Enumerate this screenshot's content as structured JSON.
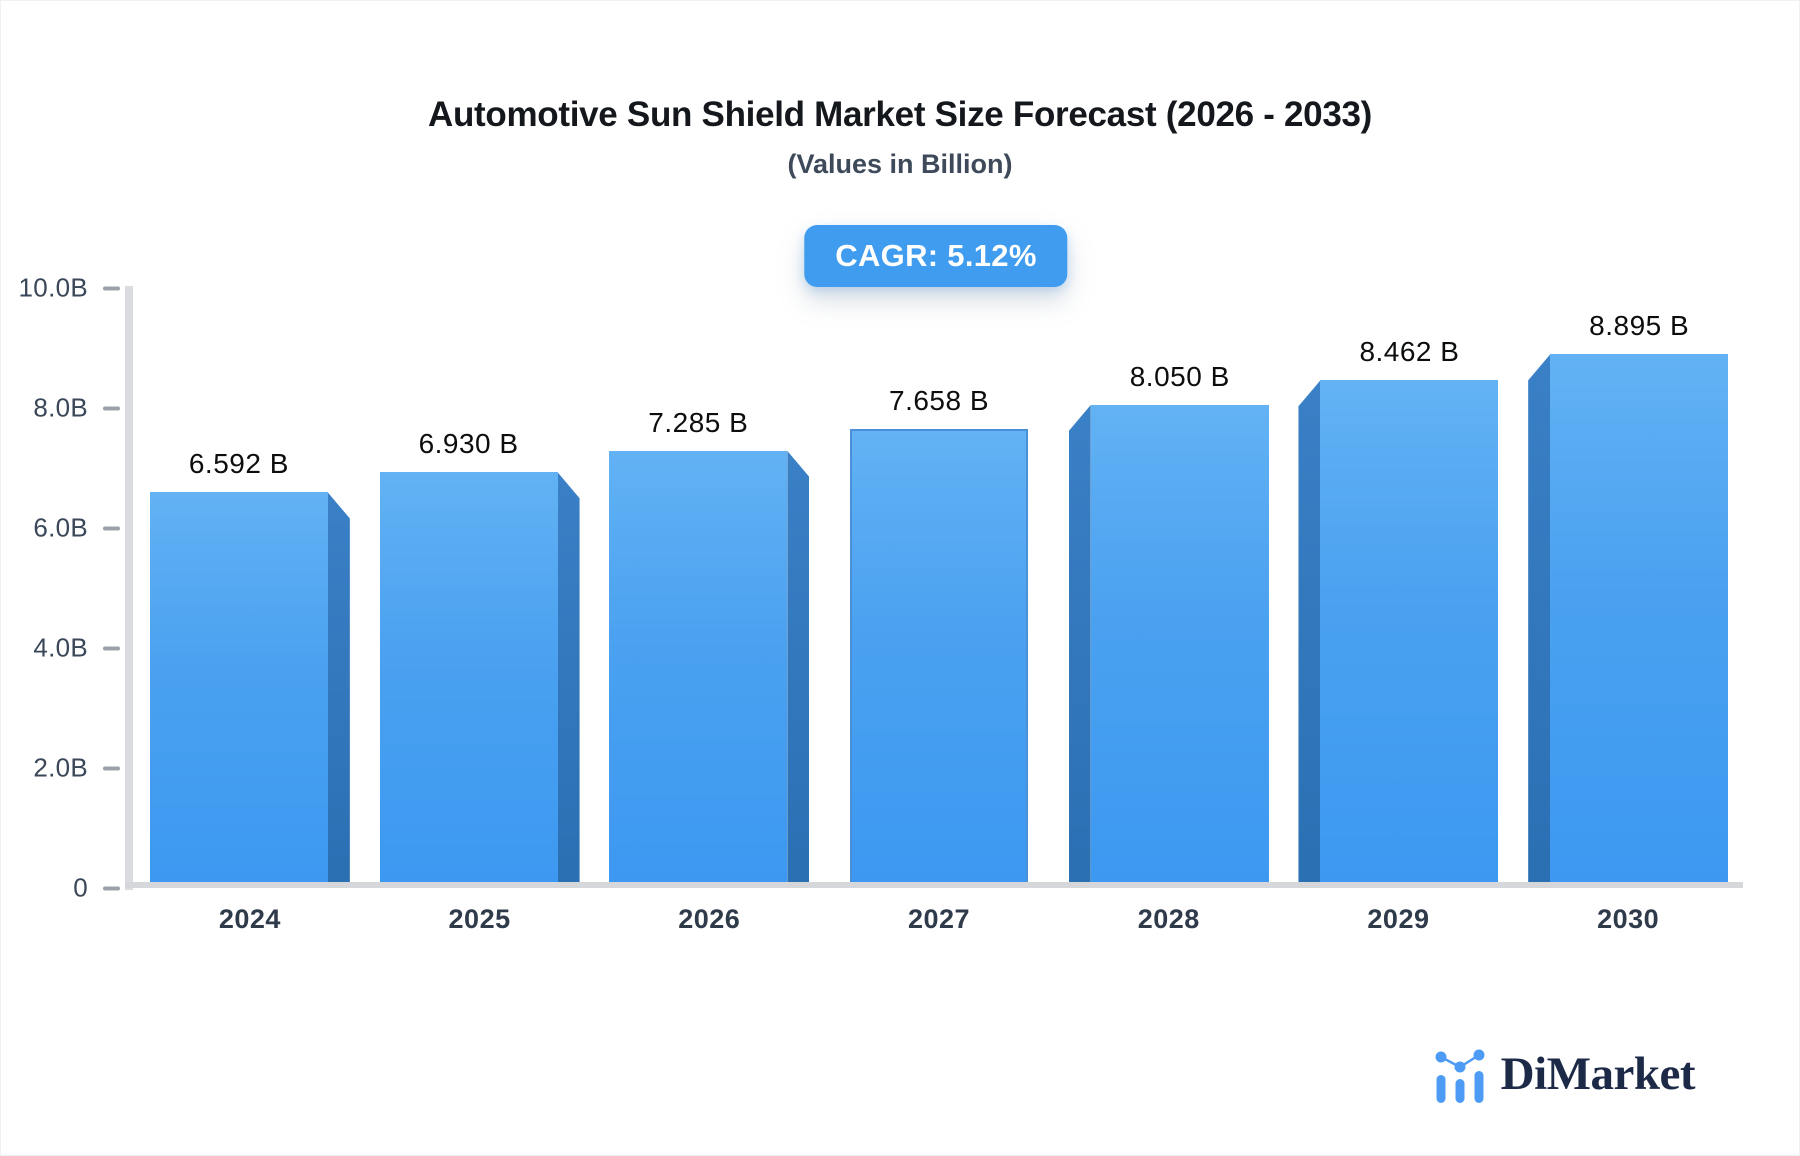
{
  "header": {
    "title": "Automotive Sun Shield Market Size Forecast (2026 - 2033)",
    "subtitle": "(Values in Billion)"
  },
  "badge": {
    "label": "CAGR: 5.12%"
  },
  "chart_data": {
    "type": "bar",
    "title": "Automotive Sun Shield Market Size Forecast (2026 - 2033)",
    "subtitle": "(Values in Billion)",
    "cagr": "5.12%",
    "categories": [
      "2024",
      "2025",
      "2026",
      "2027",
      "2028",
      "2029",
      "2030"
    ],
    "values": [
      6.592,
      6.93,
      7.285,
      7.658,
      8.05,
      8.462,
      8.895
    ],
    "value_labels": [
      "6.592 B",
      "6.930 B",
      "7.285 B",
      "7.658 B",
      "8.050 B",
      "8.462 B",
      "8.895 B"
    ],
    "xlabel": "",
    "ylabel": "",
    "ylim": [
      0,
      10
    ],
    "ytick_labels_top_to_bottom": [
      "10.0B",
      "8.0B",
      "6.0B",
      "4.0B",
      "2.0B",
      "0"
    ],
    "grid": false,
    "legend": false,
    "bar_style": "3d-extruded, perspective toward center: left bars shaded on right side, center bar flat, right bars shaded on left side"
  },
  "colors": {
    "bar_face_top": "#62b2f4",
    "bar_face_bottom": "#3c98f1",
    "bar_side": "#2f77bb",
    "badge_bg": "#3f9cee",
    "badge_text": "#ffffff",
    "axis_line": "#d8dadd",
    "tick_mark": "#9ba1a9",
    "title_text": "#14181d",
    "subtitle_text": "#3e4a5a",
    "axis_label_text": "#3a4758",
    "year_label_text": "#2f3b4b",
    "value_label_text": "#0b0d0f",
    "logo_text": "#1c2a47",
    "logo_icon": "#4d9bf5"
  },
  "logo": {
    "text": "DiMarket"
  }
}
